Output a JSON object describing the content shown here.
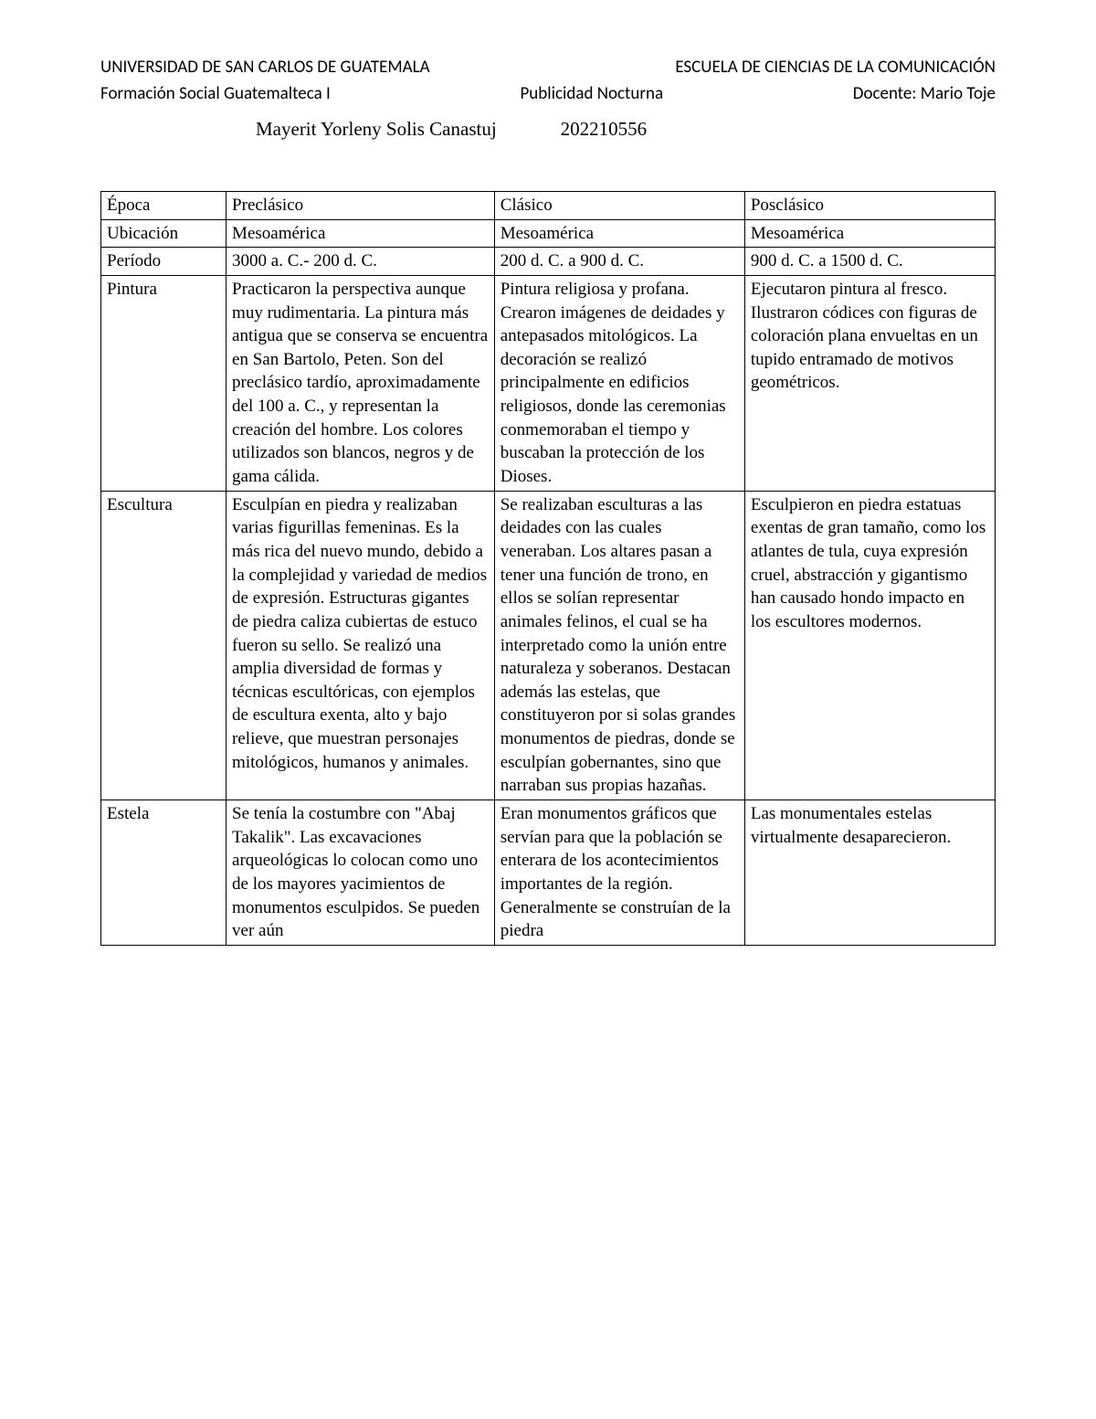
{
  "header": {
    "line1_left": "UNIVERSIDAD DE SAN CARLOS DE GUATEMALA",
    "line1_right": "ESCUELA DE CIENCIAS DE LA COMUNICACIÓN",
    "line2_left": "Formación Social Guatemalteca I",
    "line2_center": "Publicidad Nocturna",
    "line2_right": "Docente:  Mario Toje",
    "author_name": "Mayerit Yorleny Solis Canastuj",
    "author_id": "202210556"
  },
  "table": {
    "columns_count": 4,
    "col_widths_pct": [
      14,
      30,
      28,
      28
    ],
    "border_color": "#000000",
    "font_family": "Times New Roman",
    "font_size_pt": 12,
    "rows": [
      {
        "label": "Época",
        "c1": "Preclásico",
        "c2": "Clásico",
        "c3": "Posclásico"
      },
      {
        "label": "Ubicación",
        "c1": "Mesoamérica",
        "c2": "Mesoamérica",
        "c3": "Mesoamérica"
      },
      {
        "label": "Período",
        "c1": "3000 a. C.- 200 d. C.",
        "c2": "200 d. C. a 900 d. C.",
        "c3": "900 d. C. a 1500 d. C."
      },
      {
        "label": "Pintura",
        "c1": "Practicaron la perspectiva aunque muy rudimentaria. La pintura más antigua que se conserva se encuentra en San Bartolo, Peten. Son del preclásico tardío, aproximadamente del 100 a. C., y representan la creación del hombre. Los colores utilizados son blancos, negros y de gama cálida.",
        "c2": "Pintura religiosa y profana. Crearon imágenes de deidades y antepasados mitológicos. La decoración se realizó principalmente en edificios religiosos, donde las ceremonias conmemoraban el tiempo y buscaban la protección de los Dioses.",
        "c3": "Ejecutaron pintura al fresco. Ilustraron códices con figuras de coloración plana envueltas en un tupido entramado de motivos geométricos."
      },
      {
        "label": "Escultura",
        "c1": "Esculpían en piedra y realizaban varias figurillas femeninas. Es la más rica del nuevo mundo, debido a la complejidad y variedad de medios de expresión. Estructuras  gigantes de piedra caliza cubiertas de estuco fueron su sello. Se realizó una amplia diversidad de formas y técnicas escultóricas, con ejemplos de escultura exenta, alto y bajo relieve, que muestran personajes mitológicos, humanos y animales.",
        "c2": "Se realizaban esculturas a las deidades con las cuales veneraban. Los altares pasan a tener una función de trono, en ellos se solían representar animales felinos, el cual se ha interpretado como la unión entre naturaleza y soberanos. Destacan además las estelas, que constituyeron por si solas grandes monumentos de piedras, donde se esculpían gobernantes, sino que narraban  sus propias hazañas.",
        "c3": "Esculpieron en piedra estatuas exentas de gran tamaño, como los atlantes de tula, cuya expresión cruel, abstracción y gigantismo han causado hondo impacto en los escultores modernos."
      },
      {
        "label": "Estela",
        "c1": "Se tenía la costumbre con \"Abaj Takalik\". Las excavaciones arqueológicas lo colocan como uno de los mayores yacimientos de monumentos esculpidos. Se pueden ver aún",
        "c2": "Eran monumentos gráficos que servían para que la población se enterara de los acontecimientos importantes de la región. Generalmente se construían de la piedra",
        "c3": "Las monumentales estelas virtualmente desaparecieron."
      }
    ]
  }
}
